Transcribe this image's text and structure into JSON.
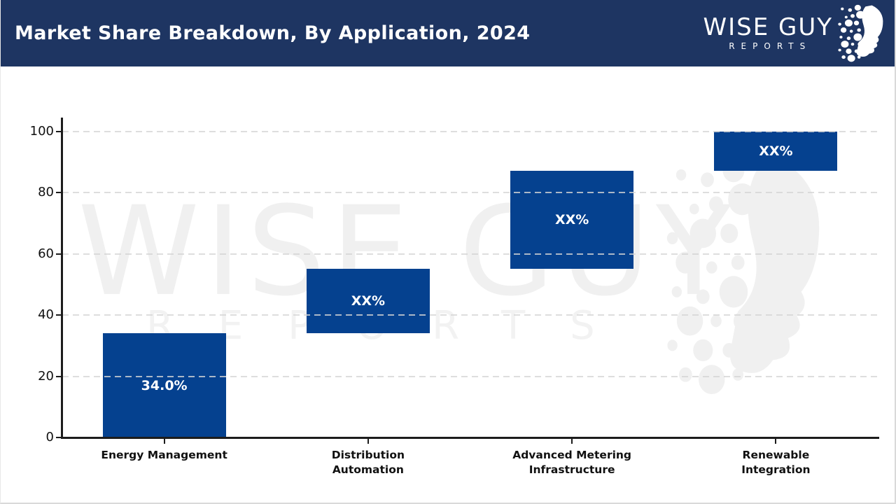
{
  "header": {
    "title": "Market Share Breakdown, By Application, 2024",
    "bg_color": "#1e3562",
    "logo": {
      "line1": "WISE GUY",
      "line2": "REPORTS"
    }
  },
  "watermark": {
    "text_large": "WISE GUY",
    "text_small": "REPORTS"
  },
  "chart_data": {
    "type": "bar",
    "subtype": "waterfall-stacked-segments",
    "title": "Market Share Breakdown, By Application, 2024",
    "categories": [
      [
        "Energy Management"
      ],
      [
        "Distribution",
        "Automation"
      ],
      [
        "Advanced Metering",
        "Infrastructure"
      ],
      [
        "Renewable",
        "Integration"
      ]
    ],
    "segments": [
      {
        "category": "Energy Management",
        "start": 0,
        "end": 34,
        "label": "34.0%"
      },
      {
        "category": "Distribution Automation",
        "start": 34,
        "end": 55,
        "label": "XX%"
      },
      {
        "category": "Advanced Metering Infrastructure",
        "start": 55,
        "end": 87,
        "label": "XX%"
      },
      {
        "category": "Renewable Integration",
        "start": 87,
        "end": 100,
        "label": "XX%"
      }
    ],
    "values_shown": [
      "34.0%",
      "XX%",
      "XX%",
      "XX%"
    ],
    "yticks": [
      0,
      20,
      40,
      60,
      80,
      100
    ],
    "ylim": [
      0,
      104
    ],
    "xlabel": "",
    "ylabel": "",
    "bar_color": "#05418f",
    "grid": "horizontal dashed",
    "gridline_color": "#d5d5d5",
    "legend": "none"
  }
}
